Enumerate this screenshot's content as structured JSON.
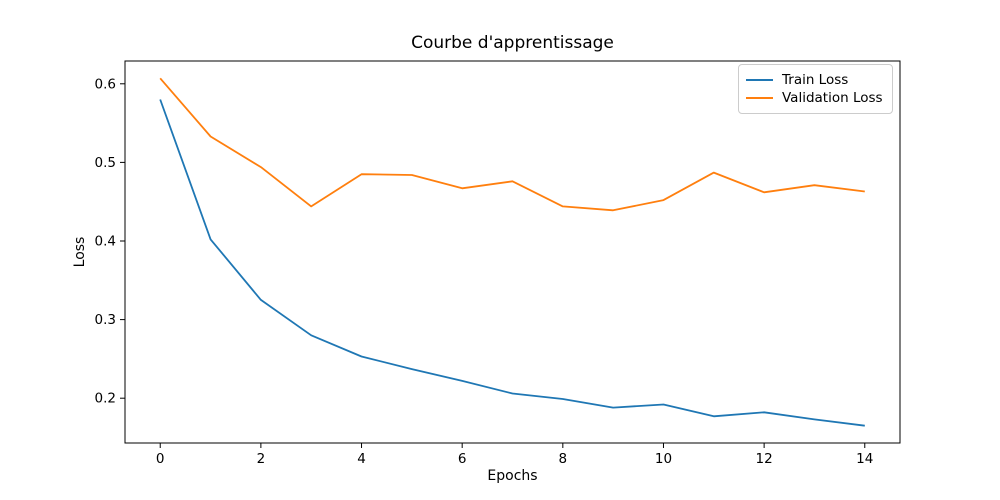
{
  "figure": {
    "title": "Courbe d'apprentissage",
    "xlabel": "Epochs",
    "ylabel": "Loss"
  },
  "legend": {
    "entries": [
      {
        "label": "Train Loss",
        "color": "#1f77b4"
      },
      {
        "label": "Validation Loss",
        "color": "#ff7f0e"
      }
    ]
  },
  "chart_data": {
    "type": "line",
    "title": "Courbe d'apprentissage",
    "xlabel": "Epochs",
    "ylabel": "Loss",
    "x": [
      0,
      1,
      2,
      3,
      4,
      5,
      6,
      7,
      8,
      9,
      10,
      11,
      12,
      13,
      14
    ],
    "series": [
      {
        "name": "Train Loss",
        "color": "#1f77b4",
        "values": [
          0.58,
          0.402,
          0.325,
          0.28,
          0.253,
          0.237,
          0.222,
          0.206,
          0.199,
          0.188,
          0.192,
          0.177,
          0.182,
          0.173,
          0.165
        ]
      },
      {
        "name": "Validation Loss",
        "color": "#ff7f0e",
        "values": [
          0.607,
          0.533,
          0.494,
          0.444,
          0.485,
          0.484,
          0.467,
          0.476,
          0.444,
          0.439,
          0.452,
          0.487,
          0.462,
          0.471,
          0.463
        ]
      }
    ],
    "xticks": [
      0,
      2,
      4,
      6,
      8,
      10,
      12,
      14
    ],
    "yticks": [
      0.2,
      0.3,
      0.4,
      0.5,
      0.6
    ],
    "xlim": [
      -0.7,
      14.7
    ],
    "ylim": [
      0.143,
      0.629
    ],
    "grid": false,
    "legend_position": "upper right"
  }
}
